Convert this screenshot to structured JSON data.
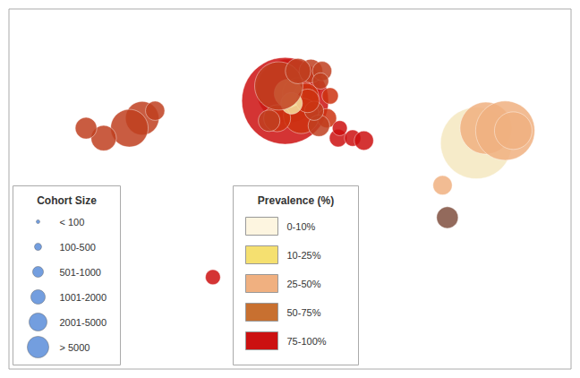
{
  "chart_data": {
    "type": "scatter",
    "x": [
      -87,
      -95,
      -111,
      -122,
      -79,
      -43,
      4,
      2,
      10,
      15,
      12,
      4,
      -3,
      -8,
      28,
      35,
      44,
      51,
      36,
      30,
      23,
      20,
      16,
      6,
      -2,
      18,
      25,
      10,
      24,
      121,
      127,
      139,
      144,
      103,
      100
    ],
    "y": [
      41,
      37,
      33,
      37,
      44,
      -23,
      52,
      48,
      51,
      50,
      42,
      51,
      41,
      40,
      41,
      33,
      33,
      32,
      37,
      50,
      38,
      44,
      48,
      47,
      54,
      60,
      60,
      60,
      56,
      31,
      37,
      36,
      36,
      1,
      14
    ],
    "sizes": [
      600,
      800,
      300,
      200,
      150,
      80,
      3000,
      6500,
      500,
      300,
      700,
      400,
      350,
      200,
      150,
      120,
      100,
      150,
      80,
      100,
      200,
      150,
      250,
      200,
      1500,
      250,
      150,
      300,
      100,
      4000,
      1800,
      2500,
      800,
      200,
      150
    ],
    "colors": [
      "#c04020",
      "#c04020",
      "#c04020",
      "#c04020",
      "#c04020",
      "#cc1111",
      "#c04020",
      "#cc1111",
      "#cc2211",
      "#cc3311",
      "#cc3311",
      "#f5e0a0",
      "#cc3311",
      "#c04020",
      "#cc3311",
      "#cc1111",
      "#cc1111",
      "#cc1111",
      "#cc1111",
      "#cc3311",
      "#c04020",
      "#c04020",
      "#cc3311",
      "#f5e0a0",
      "#c04020",
      "#c04020",
      "#c04020",
      "#c04020",
      "#c04020",
      "#f5e8c0",
      "#f0b080",
      "#f0b080",
      "#f0b080",
      "#805040",
      "#f0b080"
    ],
    "xlim": [
      -170,
      180
    ],
    "ylim": [
      -60,
      85
    ],
    "tick_labels": false,
    "grid": false,
    "size_legend": {
      "title": "Cohort Size",
      "labels": [
        "< 100",
        "100-500",
        "501-1000",
        "1001-2000",
        "2001-5000",
        "> 5000"
      ],
      "color": "#5b8dd9"
    },
    "color_legend": {
      "title": "Prevalence (%)",
      "colors": [
        "#fdf5e0",
        "#f5e070",
        "#f0b080",
        "#c87030",
        "#cc1111"
      ],
      "labels": [
        "0-10%",
        "10-25%",
        "25-50%",
        "50-75%",
        "75-100%"
      ]
    }
  }
}
